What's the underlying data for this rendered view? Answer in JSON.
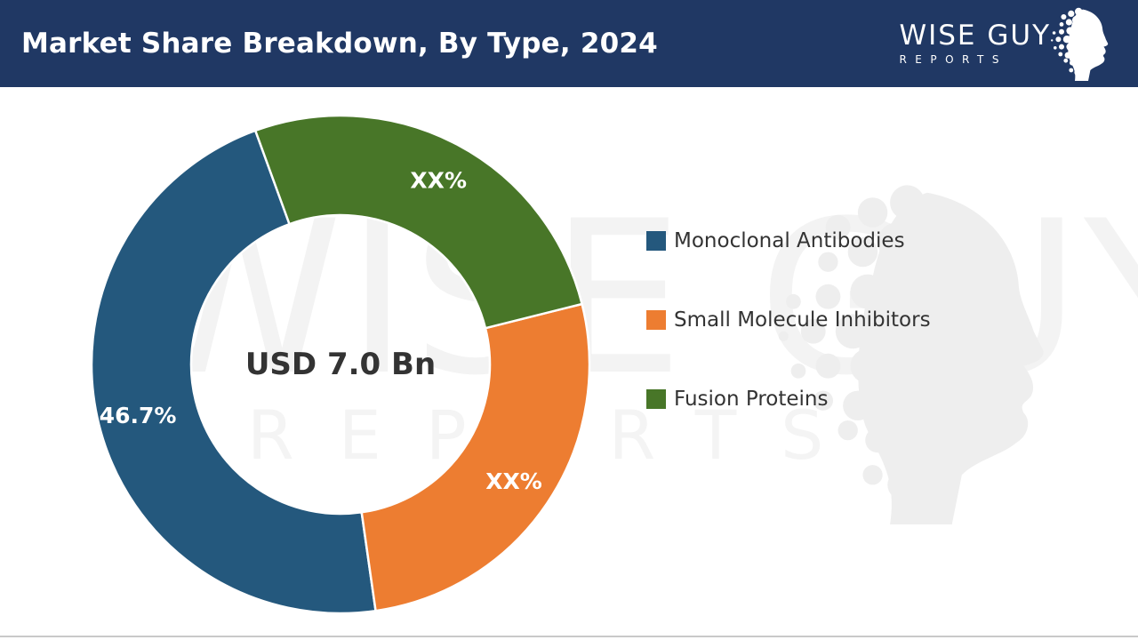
{
  "header": {
    "title": "Market Share Breakdown, By Type, 2024",
    "bg_color": "#203864",
    "logo": {
      "line1": "WISE GUY",
      "line2": "REPORTS"
    }
  },
  "chart_data": {
    "type": "pie",
    "variant": "donut",
    "title": "Market Share Breakdown, By Type, 2024",
    "center_label": "USD 7.0 Bn",
    "start_angle_deg": 110,
    "direction": "counterclockwise",
    "legend_position": "right",
    "categories": [
      "Monoclonal Antibodies",
      "Small Molecule Inhibitors",
      "Fusion Proteins"
    ],
    "slices": [
      {
        "label": "Monoclonal Antibodies",
        "value_pct": 46.7,
        "display": "46.7%",
        "color": "#24587D"
      },
      {
        "label": "Small Molecule Inhibitors",
        "value_pct": 26.65,
        "display": "XX%",
        "color": "#ED7D31"
      },
      {
        "label": "Fusion Proteins",
        "value_pct": 26.65,
        "display": "XX%",
        "color": "#487628"
      }
    ]
  },
  "watermark": {
    "line1": "WISE GUY",
    "line2": "REPORTS"
  },
  "colors": {
    "header_bg": "#203864",
    "text_dark": "#333333",
    "slice_label": "#ffffff",
    "bottom_rule": "#c9c9c9",
    "watermark": "#eeeeee"
  }
}
